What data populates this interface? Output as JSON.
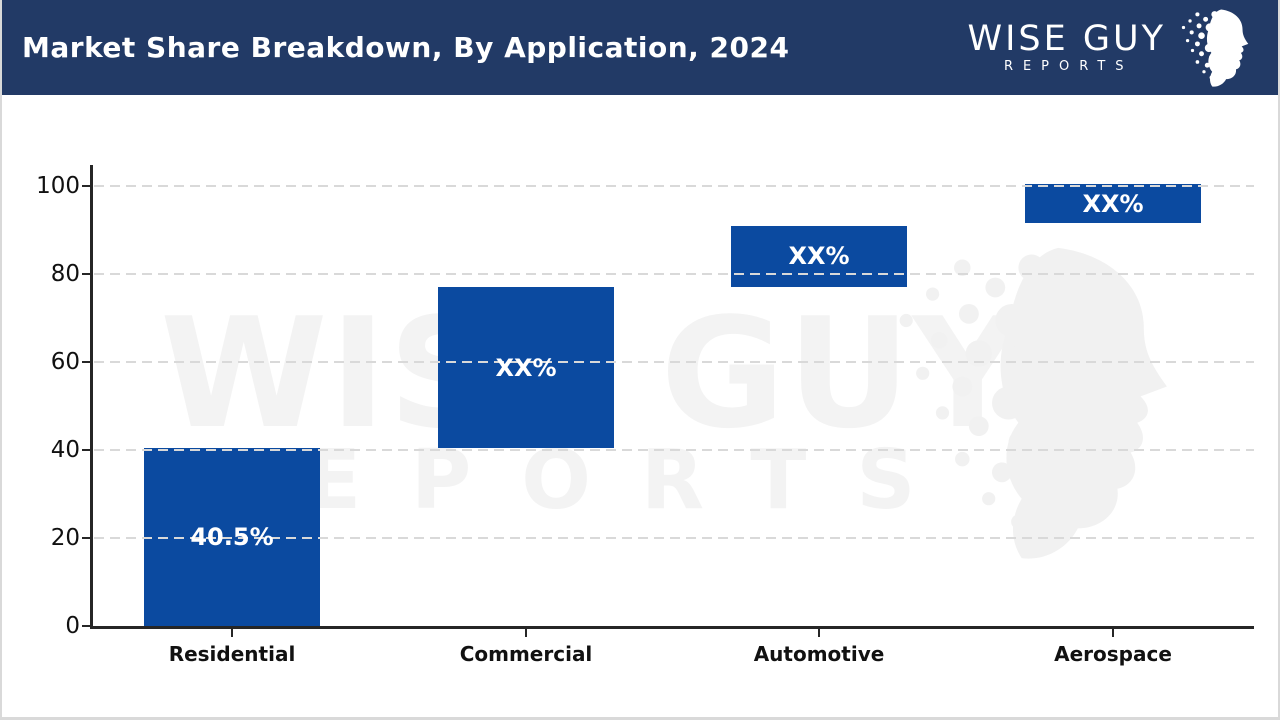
{
  "header": {
    "title": "Market Share Breakdown, By Application, 2024",
    "logo": {
      "line1": "WISE GUY",
      "line2": "REPORTS"
    }
  },
  "watermark": {
    "line1": "WISE GUY",
    "line2": "REPORTS"
  },
  "colors": {
    "header_bg": "#223a66",
    "bar": "#0b4aa0",
    "grid": "#d9d9d9",
    "axis": "#262626",
    "bar_label": "#ffffff",
    "watermark": "#f2f2f2"
  },
  "chart_data": {
    "type": "bar",
    "subtype": "waterfall",
    "title": "Market Share Breakdown, By Application, 2024",
    "categories": [
      "Residential",
      "Commercial",
      "Automotive",
      "Aerospace"
    ],
    "segments": [
      {
        "category": "Residential",
        "start": 0,
        "end": 40.5,
        "label": "40.5%"
      },
      {
        "category": "Commercial",
        "start": 40.5,
        "end": 77,
        "label": "XX%"
      },
      {
        "category": "Automotive",
        "start": 77,
        "end": 91,
        "label": "XX%"
      },
      {
        "category": "Aerospace",
        "start": 91.5,
        "end": 100.5,
        "label": "XX%"
      }
    ],
    "yticks": [
      0,
      20,
      40,
      60,
      80,
      100
    ],
    "ylim": [
      0,
      105
    ],
    "xlabel": "",
    "ylabel": "",
    "grid": "dashed-horizontal",
    "legend": "none"
  }
}
